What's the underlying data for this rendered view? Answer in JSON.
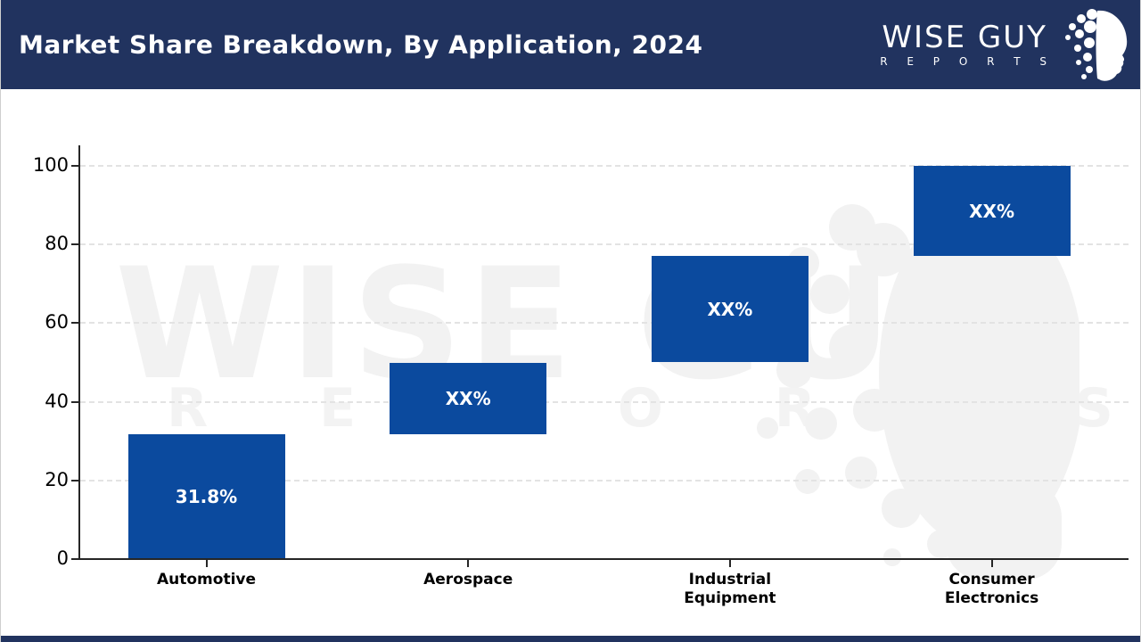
{
  "header": {
    "title": "Market Share Breakdown, By Application, 2024",
    "bg_color": "#21335f",
    "logo": {
      "line1": "WISE GUY",
      "line2": "R E P O R T S"
    }
  },
  "watermark": {
    "line1": "WISE GUY",
    "line2": "R E P O R T S"
  },
  "chart_data": {
    "type": "bar",
    "subtype": "waterfall",
    "title": "Market Share Breakdown, By Application, 2024",
    "categories": [
      "Automotive",
      "Aerospace",
      "Industrial Equipment",
      "Consumer Electronics"
    ],
    "segments": [
      {
        "category": "Automotive",
        "start": 0,
        "end": 31.8,
        "label": "31.8%"
      },
      {
        "category": "Aerospace",
        "start": 31.8,
        "end": 50,
        "label": "XX%"
      },
      {
        "category": "Industrial Equipment",
        "start": 50,
        "end": 77,
        "label": "XX%"
      },
      {
        "category": "Consumer Electronics",
        "start": 77,
        "end": 100,
        "label": "XX%"
      }
    ],
    "ylim": [
      0,
      100
    ],
    "yticks": [
      0,
      20,
      40,
      60,
      80,
      100
    ],
    "grid": "horizontal-dashed",
    "legend": "none",
    "bar_color": "#0b4a9e",
    "bar_label_color": "#ffffff",
    "xlabel": "",
    "ylabel": ""
  }
}
